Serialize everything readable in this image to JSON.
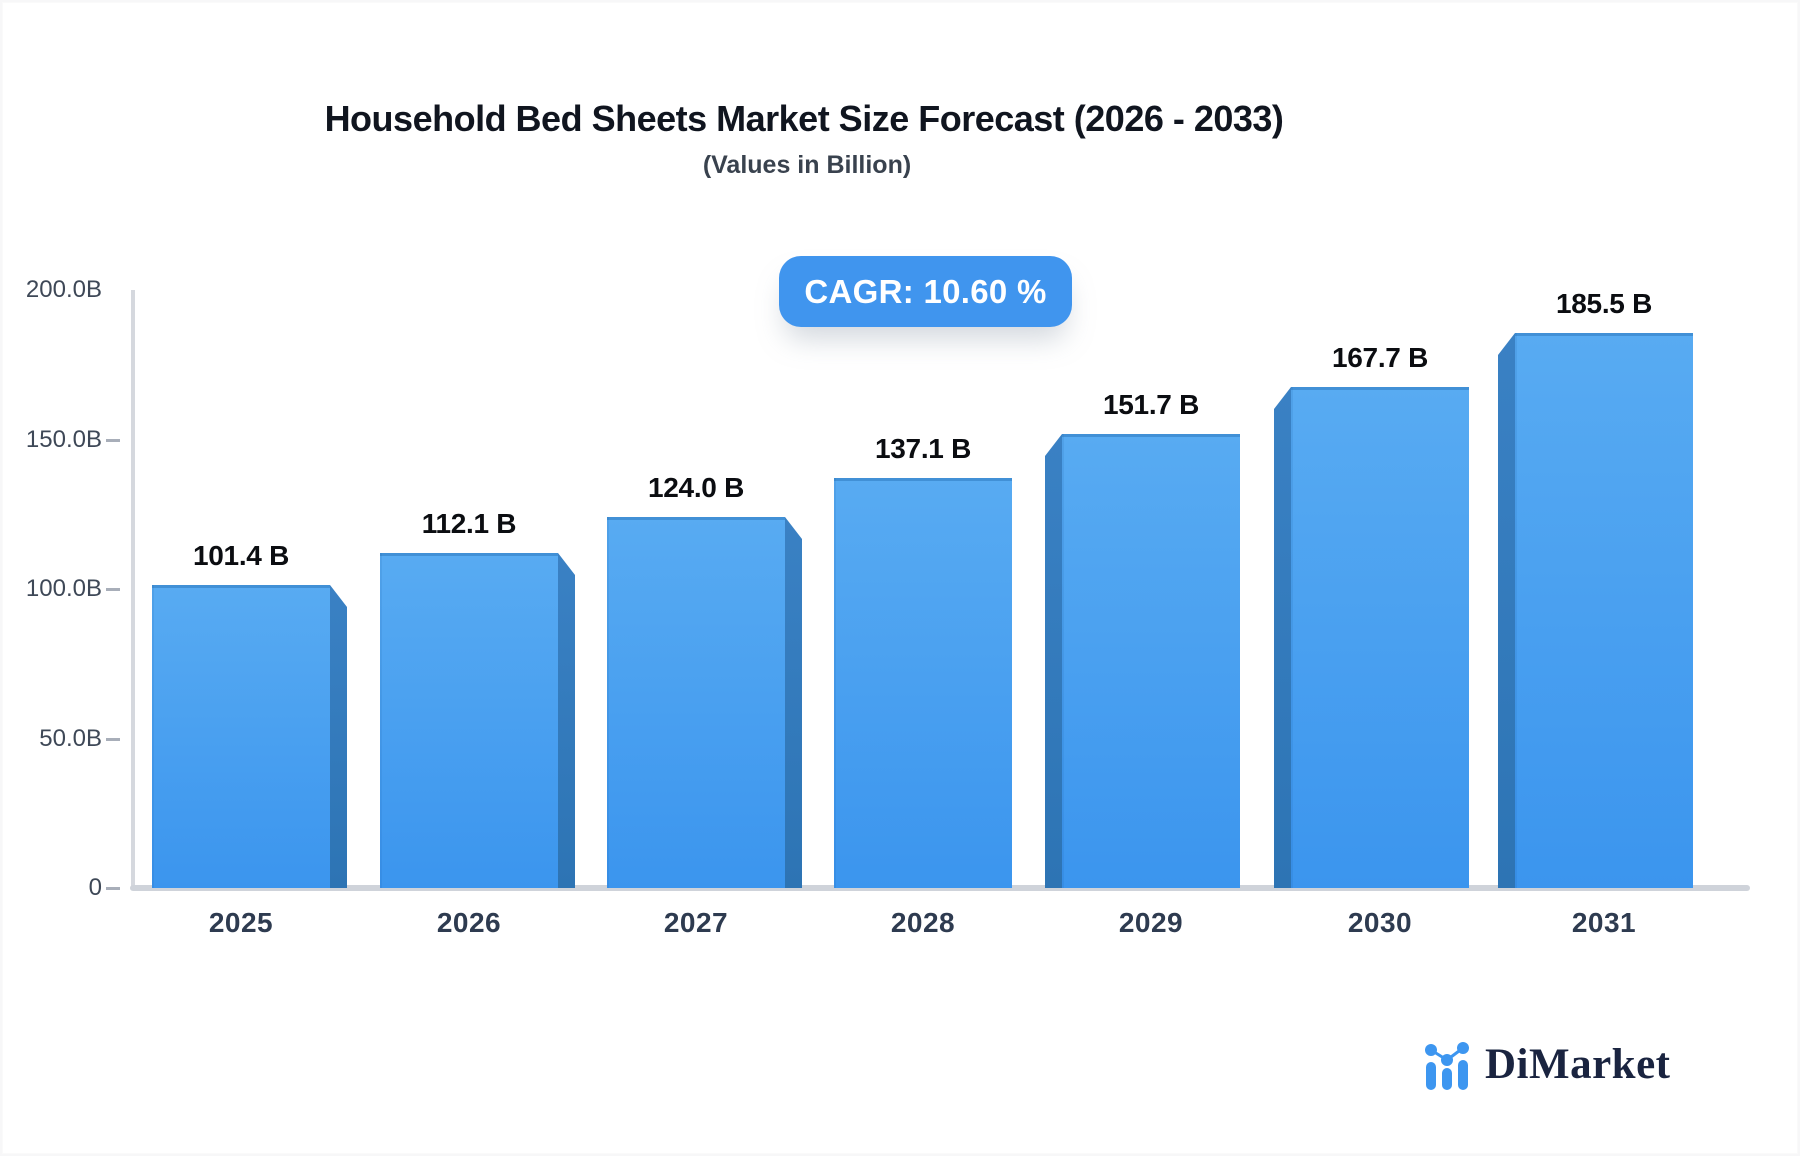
{
  "title": "Household Bed Sheets Market Size Forecast (2026 - 2033)",
  "subtitle": "(Values in Billion)",
  "badge": {
    "label": "CAGR: 10.60 %",
    "bg_color": "#4095ee",
    "text_color": "#ffffff"
  },
  "chart_data": {
    "type": "bar",
    "title": "Household Bed Sheets Market Size Forecast (2026 - 2033)",
    "subtitle": "(Values in Billion)",
    "categories": [
      "2025",
      "2026",
      "2027",
      "2028",
      "2029",
      "2030",
      "2031"
    ],
    "values": [
      101.4,
      112.1,
      124.0,
      137.1,
      151.7,
      167.7,
      185.5
    ],
    "bar_labels": [
      "101.4 B",
      "112.1 B",
      "124.0 B",
      "137.1 B",
      "151.7 B",
      "167.7 B",
      "185.5 B"
    ],
    "xlabel": "",
    "ylabel": "",
    "ylim": [
      0,
      200
    ],
    "y_ticks": [
      {
        "value": 200,
        "label": "200.0B"
      },
      {
        "value": 150,
        "label": "150.0B"
      },
      {
        "value": 100,
        "label": "100.0B"
      },
      {
        "value": 50,
        "label": "50.0B"
      },
      {
        "value": 0,
        "label": "0"
      }
    ],
    "grid": false,
    "legend": false,
    "bar_color_top": "#58abf2",
    "bar_color_bottom": "#3b95ee",
    "bar_side_color_top": "#3a81c4",
    "bar_side_color_bottom": "#2d74b4"
  },
  "logo": {
    "text": "DiMarket",
    "icon": "bar-chart-logo-icon",
    "text_color": "#1a2440",
    "accent_color": "#3d96f0"
  }
}
